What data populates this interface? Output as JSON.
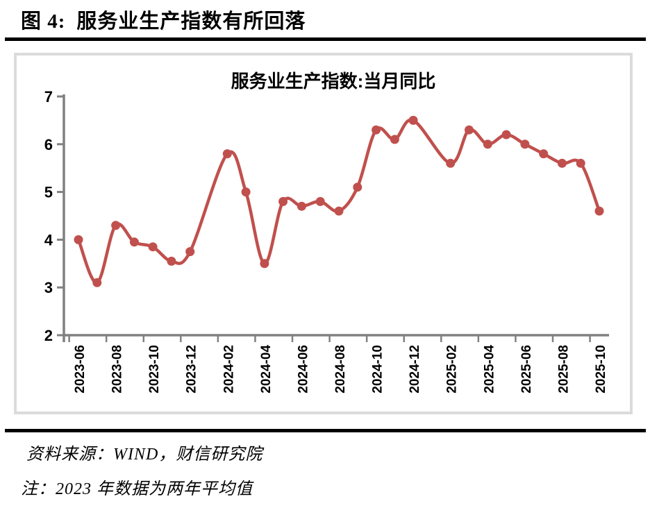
{
  "figure": {
    "label": "图 4:",
    "title": "服务业生产指数有所回落",
    "source": "资料来源：WIND，财信研究院",
    "note": "注：2023 年数据为两年平均值"
  },
  "chart_data": {
    "type": "line",
    "title": "服务业生产指数:当月同比",
    "series": [
      {
        "name": "服务业生产指数:当月同比",
        "points": [
          {
            "month": "2023-06",
            "value": 4.0
          },
          {
            "month": "2023-07",
            "value": 3.1
          },
          {
            "month": "2023-08",
            "value": 4.3
          },
          {
            "month": "2023-09",
            "value": 3.95
          },
          {
            "month": "2023-10",
            "value": 3.85
          },
          {
            "month": "2023-11",
            "value": 3.55
          },
          {
            "month": "2023-12",
            "value": 3.75
          },
          {
            "month": "2024-02",
            "value": 5.8
          },
          {
            "month": "2024-03",
            "value": 5.0
          },
          {
            "month": "2024-04",
            "value": 3.5
          },
          {
            "month": "2024-05",
            "value": 4.8
          },
          {
            "month": "2024-06",
            "value": 4.7
          },
          {
            "month": "2024-07",
            "value": 4.8
          },
          {
            "month": "2024-08",
            "value": 4.6
          },
          {
            "month": "2024-09",
            "value": 5.1
          },
          {
            "month": "2024-10",
            "value": 6.3
          },
          {
            "month": "2024-11",
            "value": 6.1
          },
          {
            "month": "2024-12",
            "value": 6.5
          },
          {
            "month": "2025-02",
            "value": 5.6
          },
          {
            "month": "2025-03",
            "value": 6.3
          },
          {
            "month": "2025-04",
            "value": 6.0
          },
          {
            "month": "2025-05",
            "value": 6.2
          },
          {
            "month": "2025-06",
            "value": 6.0
          },
          {
            "month": "2025-07",
            "value": 5.8
          },
          {
            "month": "2025-08",
            "value": 5.6
          },
          {
            "month": "2025-09",
            "value": 5.6
          },
          {
            "month": "2025-10",
            "value": 4.6
          }
        ]
      }
    ],
    "ylim": [
      2,
      7
    ],
    "yticks": [
      7,
      6,
      5,
      4,
      3,
      2
    ],
    "xtick_labels": [
      "2023-06",
      "2023-08",
      "2023-10",
      "2023-12",
      "2024-02",
      "2024-04",
      "2024-06",
      "2024-08",
      "2024-10",
      "2024-12",
      "2025-02",
      "2025-04",
      "2025-06",
      "2025-08",
      "2025-10"
    ],
    "line_color": "#C0504D",
    "axis_color": "#808080",
    "grid": false,
    "legend_position": "none",
    "marker": "circle",
    "line_smooth": true
  }
}
